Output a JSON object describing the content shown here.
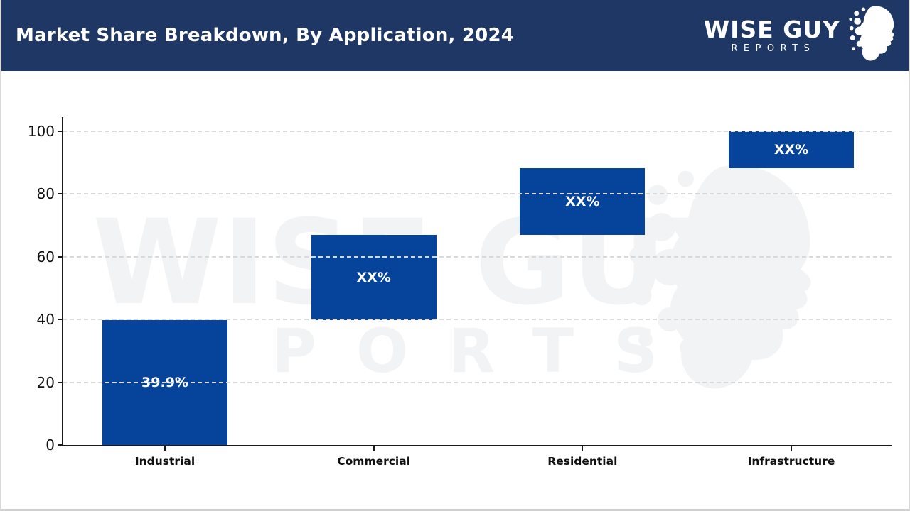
{
  "header": {
    "title": "Market Share Breakdown, By Application, 2024",
    "logo": {
      "line1": "WISE GUY",
      "line2": "REPORTS"
    }
  },
  "watermark": {
    "line1": "WISE GUY",
    "line2": "PORTS"
  },
  "chart_data": {
    "type": "bar",
    "subtype": "waterfall",
    "title": "Market Share Breakdown, By Application, 2024",
    "categories": [
      "Industrial",
      "Commercial",
      "Residential",
      "Infrastructure"
    ],
    "segments": [
      {
        "category": "Industrial",
        "start": 0,
        "end": 39.9,
        "label": "39.9%"
      },
      {
        "category": "Commercial",
        "start": 39.9,
        "end": 66.9,
        "label": "XX%"
      },
      {
        "category": "Residential",
        "start": 66.9,
        "end": 88.2,
        "label": "XX%"
      },
      {
        "category": "Infrastructure",
        "start": 88.2,
        "end": 100,
        "label": "XX%"
      }
    ],
    "xlabel": "",
    "ylabel": "",
    "ylim": [
      0,
      100
    ],
    "yticks": [
      0,
      20,
      40,
      60,
      80,
      100
    ],
    "grid": "horizontal-dashed",
    "legend": "none",
    "bar_color": "#06449c",
    "header_color": "#1f3765",
    "gridline_color": "#d9d9d9"
  }
}
